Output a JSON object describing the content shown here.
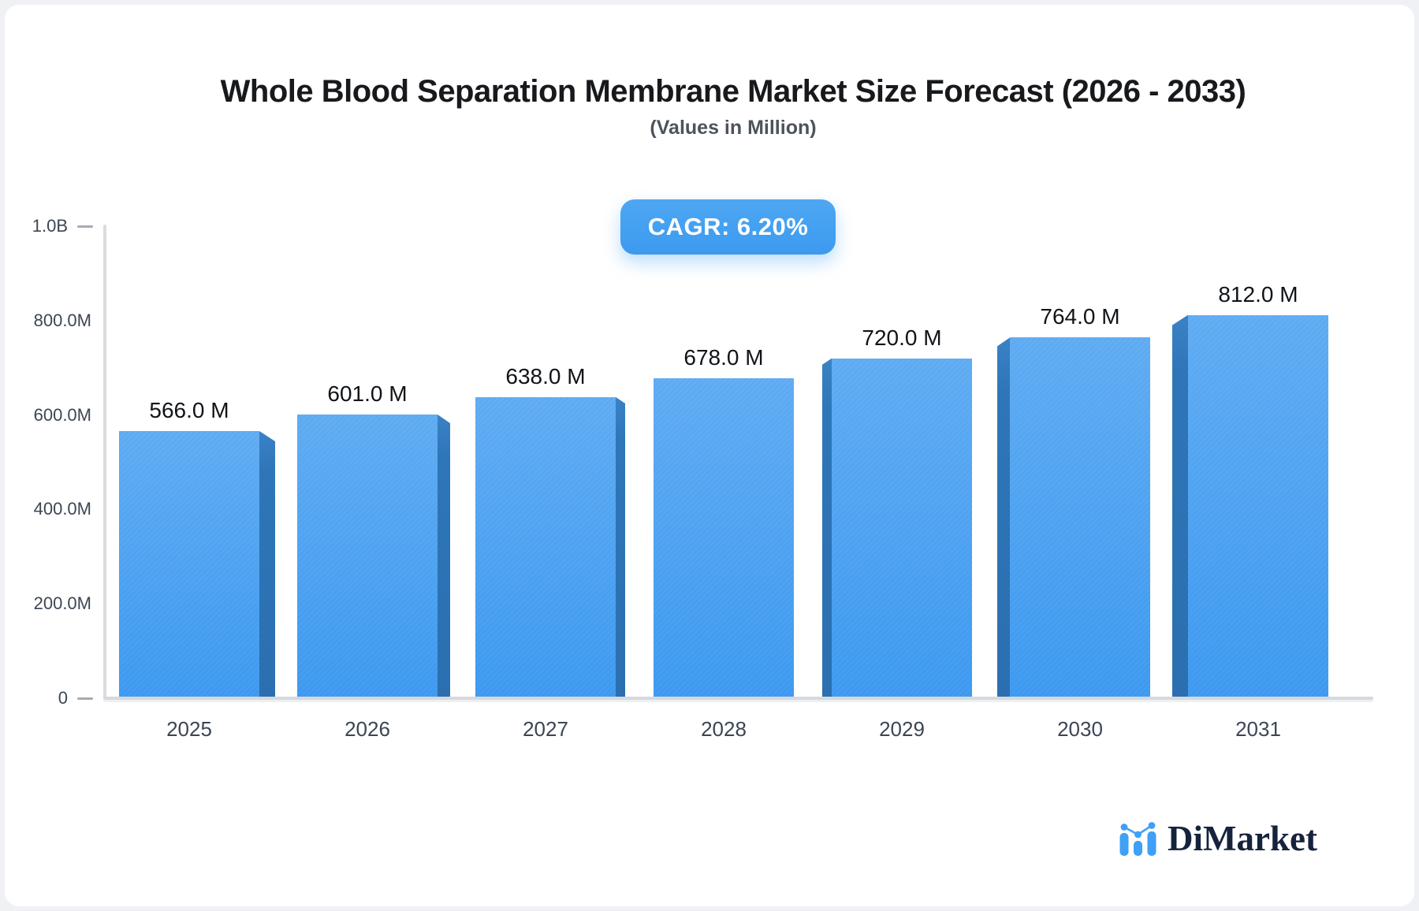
{
  "header": {
    "title": "Whole Blood Separation Membrane Market Size Forecast (2026 - 2033)",
    "subtitle": "(Values in Million)",
    "cagr_label": "CAGR: 6.20%"
  },
  "chart_data": {
    "type": "bar",
    "title": "Whole Blood Separation Membrane Market Size Forecast (2026 - 2033)",
    "subtitle": "(Values in Million)",
    "cagr_label": "CAGR: 6.20%",
    "categories": [
      "2025",
      "2026",
      "2027",
      "2028",
      "2029",
      "2030",
      "2031"
    ],
    "values_millions": [
      566,
      601,
      638,
      678,
      720,
      764,
      812
    ],
    "bar_labels": [
      "566.0 M",
      "601.0 M",
      "638.0 M",
      "678.0 M",
      "720.0 M",
      "764.0 M",
      "812.0 M"
    ],
    "y_axis": {
      "min": 0,
      "max": 1000,
      "unit": "Million",
      "ticks": [
        {
          "label": "1.0B",
          "value": 1000,
          "dash": true
        },
        {
          "label": "800.0M",
          "value": 800,
          "dash": false
        },
        {
          "label": "600.0M",
          "value": 600,
          "dash": false
        },
        {
          "label": "400.0M",
          "value": 400,
          "dash": false
        },
        {
          "label": "200.0M",
          "value": 200,
          "dash": false
        },
        {
          "label": "0",
          "value": 0,
          "dash": true
        }
      ]
    },
    "grid": false,
    "legend": false,
    "style_3d_perspective": true
  },
  "colors": {
    "accent": "#42A1F2",
    "bar_face_top": "#5FABF2",
    "bar_face_bottom": "#3D99F0",
    "bar_side": "#2E76B8",
    "axis": "#D7D9DF",
    "logo_navy": "#16233C",
    "logo_blue": "#3FA0F5"
  },
  "footer": {
    "brand": "DiMarket"
  }
}
